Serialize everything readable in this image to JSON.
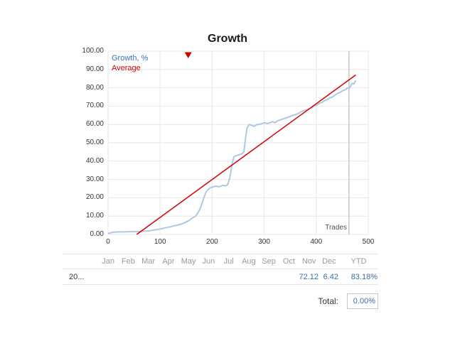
{
  "title": "Growth",
  "legend": {
    "growth": "Growth, %",
    "average": "Average"
  },
  "axes": {
    "x_note": "Trades",
    "y_ticks": [
      "100.00",
      "90.00",
      "80.00",
      "70.00",
      "60.00",
      "50.00",
      "40.00",
      "30.00",
      "20.00",
      "10.00",
      "0.00"
    ],
    "x_ticks": [
      "0",
      "100",
      "200",
      "300",
      "400",
      "500"
    ]
  },
  "chart_data": {
    "type": "line",
    "title": "Growth",
    "xlabel": "Trades",
    "ylabel": "Growth, %",
    "xlim": [
      0,
      500
    ],
    "ylim": [
      0,
      100
    ],
    "grid": true,
    "legend_position": "top-left",
    "cursor_x": 463,
    "marker": {
      "type": "triangle-down",
      "x": 154,
      "y": 100,
      "color": "#d40000"
    },
    "series": [
      {
        "name": "Growth, %",
        "color": "#aec8e4",
        "width": 2,
        "x": [
          0,
          10,
          20,
          30,
          40,
          50,
          60,
          70,
          80,
          90,
          100,
          110,
          120,
          130,
          140,
          148,
          155,
          162,
          168,
          172,
          176,
          180,
          184,
          188,
          192,
          197,
          202,
          208,
          214,
          220,
          226,
          230,
          234,
          238,
          242,
          247,
          252,
          257,
          261,
          264,
          267,
          271,
          276,
          281,
          286,
          291,
          296,
          301,
          306,
          311,
          316,
          321,
          326,
          331,
          336,
          341,
          346,
          351,
          356,
          361,
          366,
          371,
          376,
          381,
          386,
          391,
          396,
          401,
          406,
          411,
          416,
          421,
          426,
          431,
          436,
          441,
          446,
          451,
          456,
          460,
          463,
          466,
          469,
          472,
          476
        ],
        "y": [
          0.5,
          1.2,
          1.4,
          1.4,
          1.5,
          1.5,
          1.6,
          1.8,
          2.0,
          2.5,
          3.0,
          3.6,
          4.2,
          4.9,
          5.6,
          6.5,
          7.5,
          9.0,
          10.0,
          11.5,
          13.5,
          16.5,
          20.0,
          23.0,
          24.5,
          25.5,
          26.0,
          26.3,
          26.0,
          26.8,
          26.5,
          27.2,
          31.0,
          38.0,
          42.5,
          43.0,
          43.5,
          44.0,
          45.0,
          52.0,
          58.0,
          60.0,
          59.5,
          59.0,
          60.0,
          60.0,
          60.5,
          61.0,
          60.5,
          61.0,
          61.5,
          61.0,
          62.0,
          62.5,
          63.0,
          63.5,
          64.0,
          64.5,
          65.0,
          65.5,
          66.0,
          67.0,
          67.5,
          68.0,
          68.5,
          69.0,
          70.0,
          70.5,
          71.5,
          72.0,
          73.0,
          73.5,
          74.5,
          75.0,
          76.0,
          77.0,
          77.5,
          78.5,
          79.0,
          80.0,
          79.5,
          81.0,
          82.5,
          82.0,
          84.0
        ]
      },
      {
        "name": "Average",
        "color": "#d40000",
        "width": 1.5,
        "x": [
          55,
          476
        ],
        "y": [
          0,
          87
        ]
      }
    ]
  },
  "table": {
    "months": [
      "Jan",
      "Feb",
      "Mar",
      "Apr",
      "May",
      "Jun",
      "Jul",
      "Aug",
      "Sep",
      "Oct",
      "Nov",
      "Dec",
      "YTD"
    ],
    "rows": [
      {
        "year": "20...",
        "values": [
          "",
          "",
          "",
          "",
          "",
          "",
          "",
          "",
          "",
          "",
          "72.12",
          "6.42",
          "83.18%"
        ]
      }
    ],
    "total_label": "Total:",
    "total_value": "0.00%"
  },
  "colors": {
    "growth_line": "#aec8e4",
    "average_line": "#d40000",
    "legend_growth_text": "#3a6fc4",
    "legend_average_text": "#d40000",
    "value_text": "#3a6ea5",
    "month_text": "#9a9a9a",
    "grid": "#e7e7e7"
  }
}
